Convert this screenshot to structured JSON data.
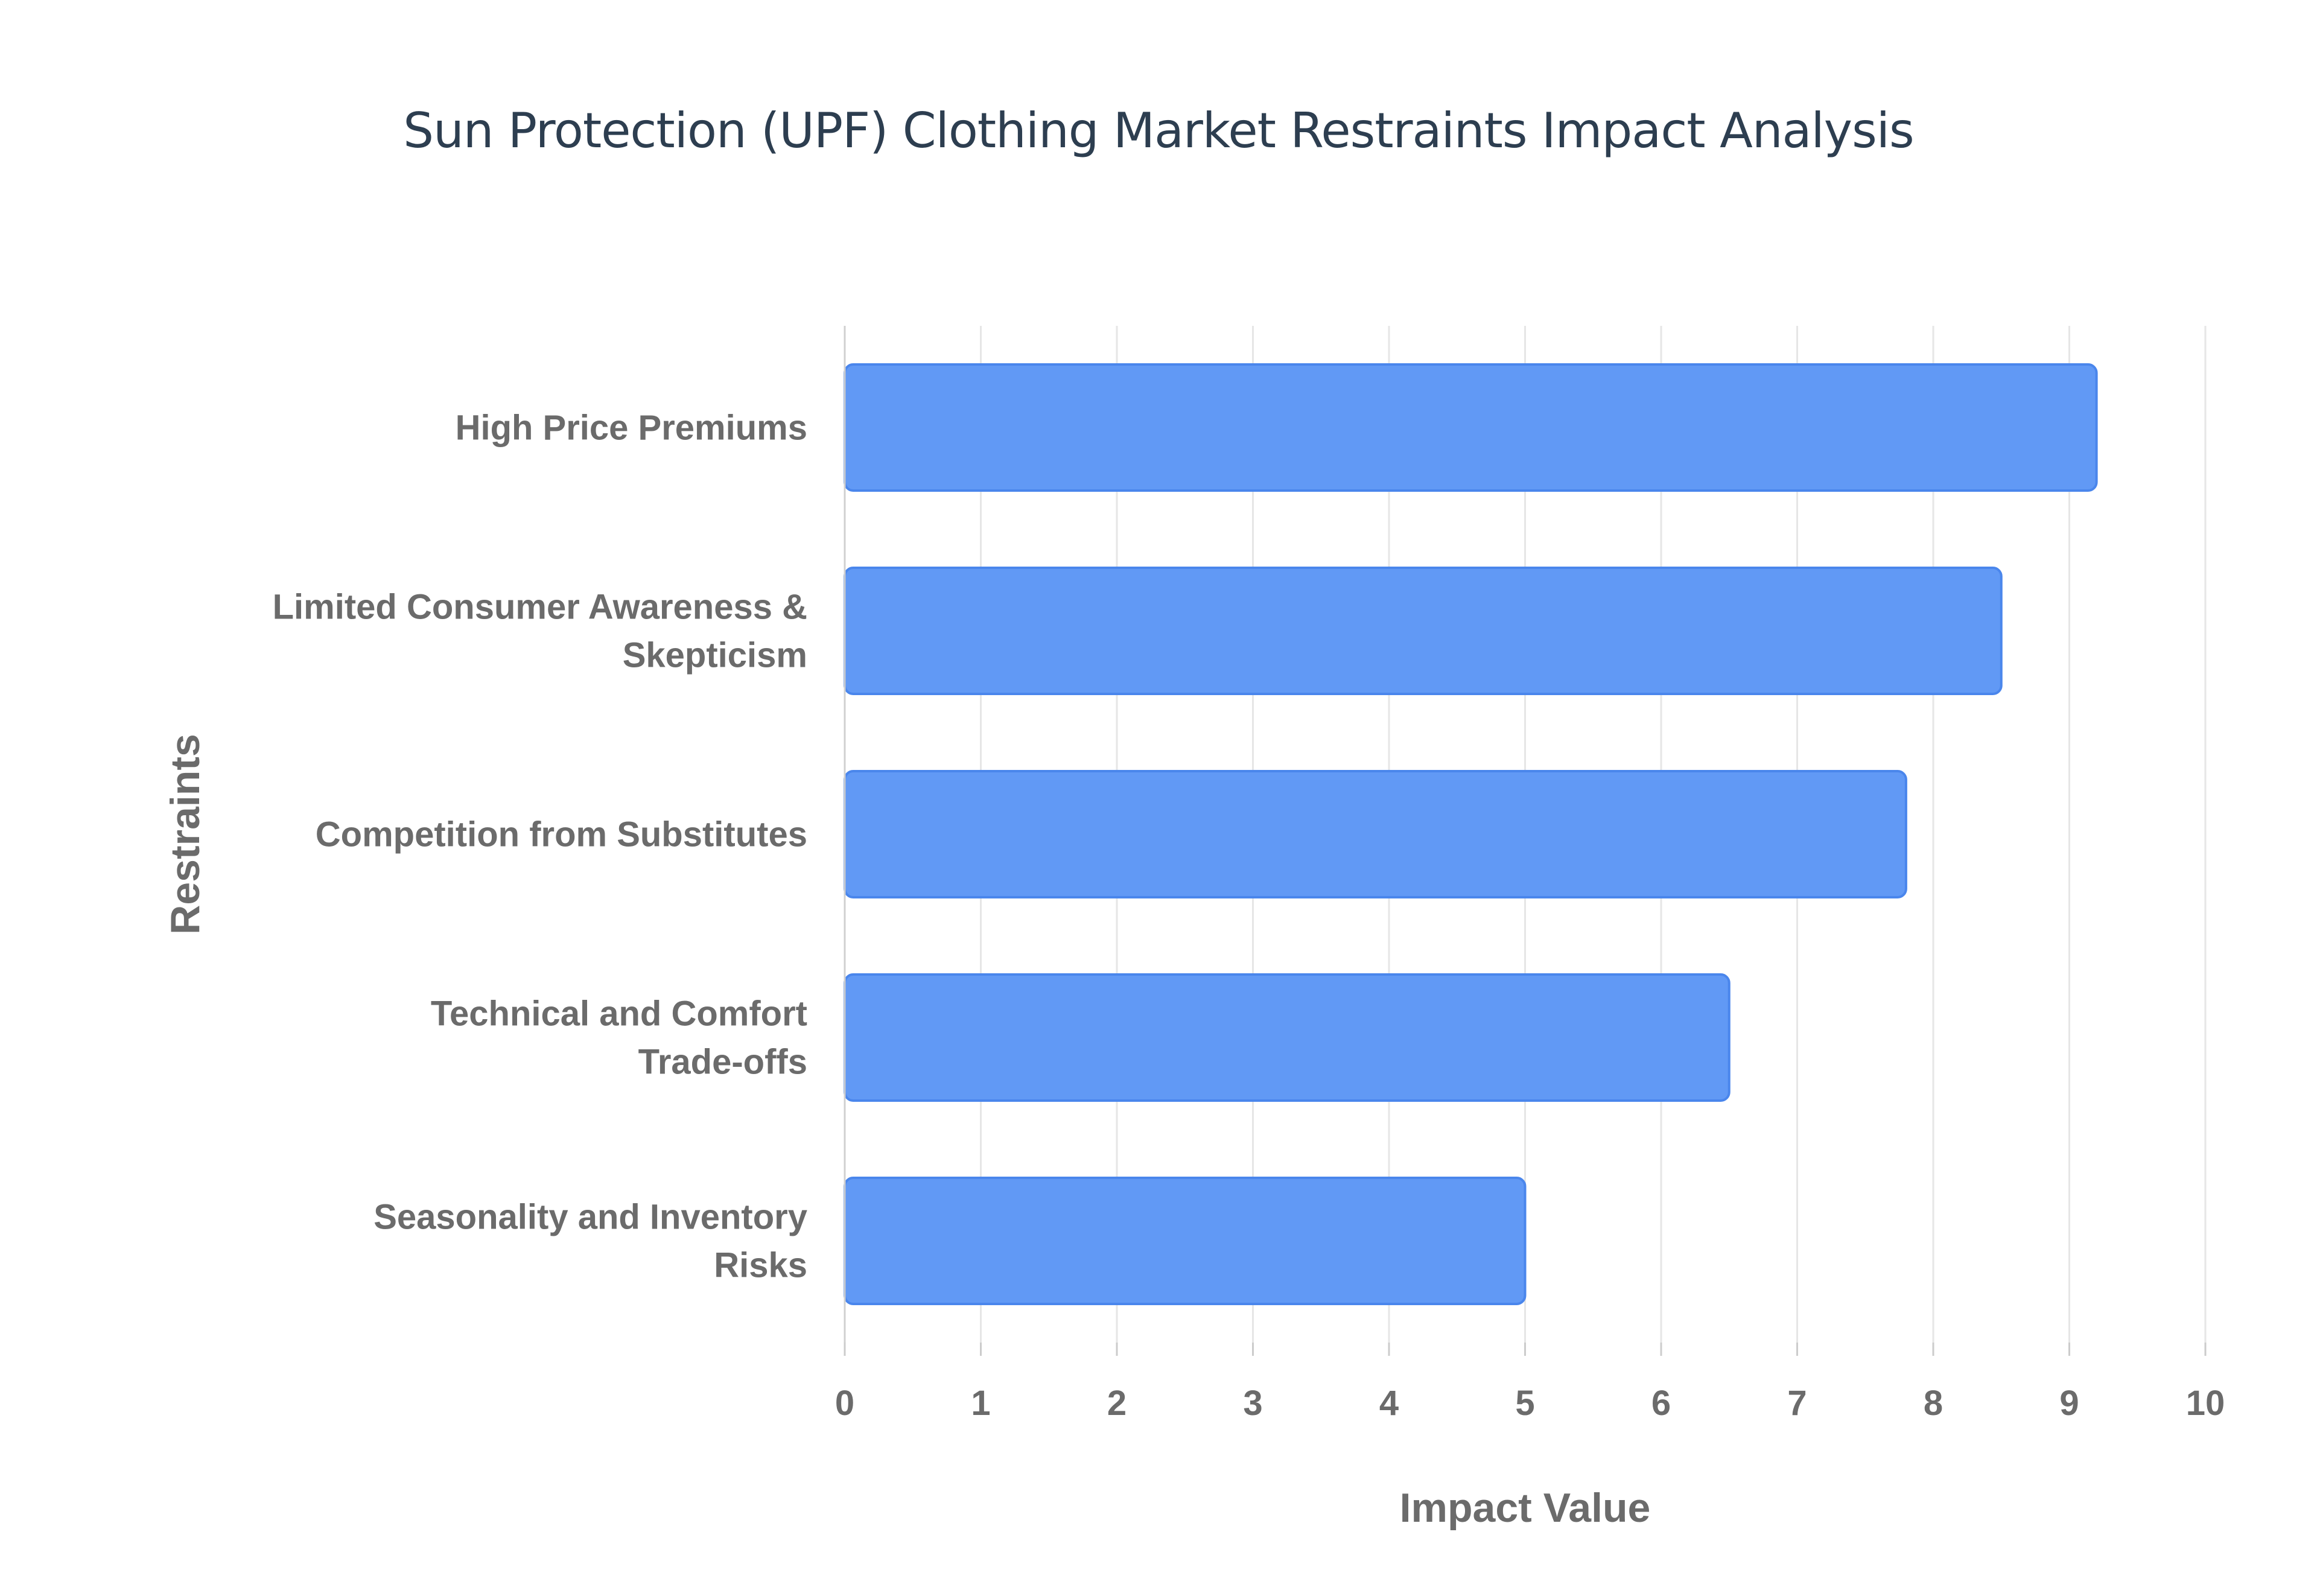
{
  "chart_data": {
    "type": "bar",
    "orientation": "horizontal",
    "title": "Sun Protection (UPF) Clothing Market Restraints Impact Analysis",
    "xlabel": "Impact Value",
    "ylabel": "Restraints",
    "categories": [
      "High Price Premiums",
      "Limited Consumer Awareness & Skepticism",
      "Competition from Substitutes",
      "Technical and Comfort Trade-offs",
      "Seasonality and Inventory Risks"
    ],
    "category_lines": [
      [
        "High Price Premiums"
      ],
      [
        "Limited Consumer Awareness &",
        "Skepticism"
      ],
      [
        "Competition from Substitutes"
      ],
      [
        "Technical and Comfort",
        "Trade-offs"
      ],
      [
        "Seasonality and Inventory",
        "Risks"
      ]
    ],
    "values": [
      9.2,
      8.5,
      7.8,
      6.5,
      5.0
    ],
    "xlim": [
      0,
      10
    ],
    "x_ticks": [
      0,
      1,
      2,
      3,
      4,
      5,
      6,
      7,
      8,
      9,
      10
    ],
    "grid": true,
    "legend": false,
    "bar_color": "#6199f5",
    "bar_edge_color": "#4a86ec"
  }
}
